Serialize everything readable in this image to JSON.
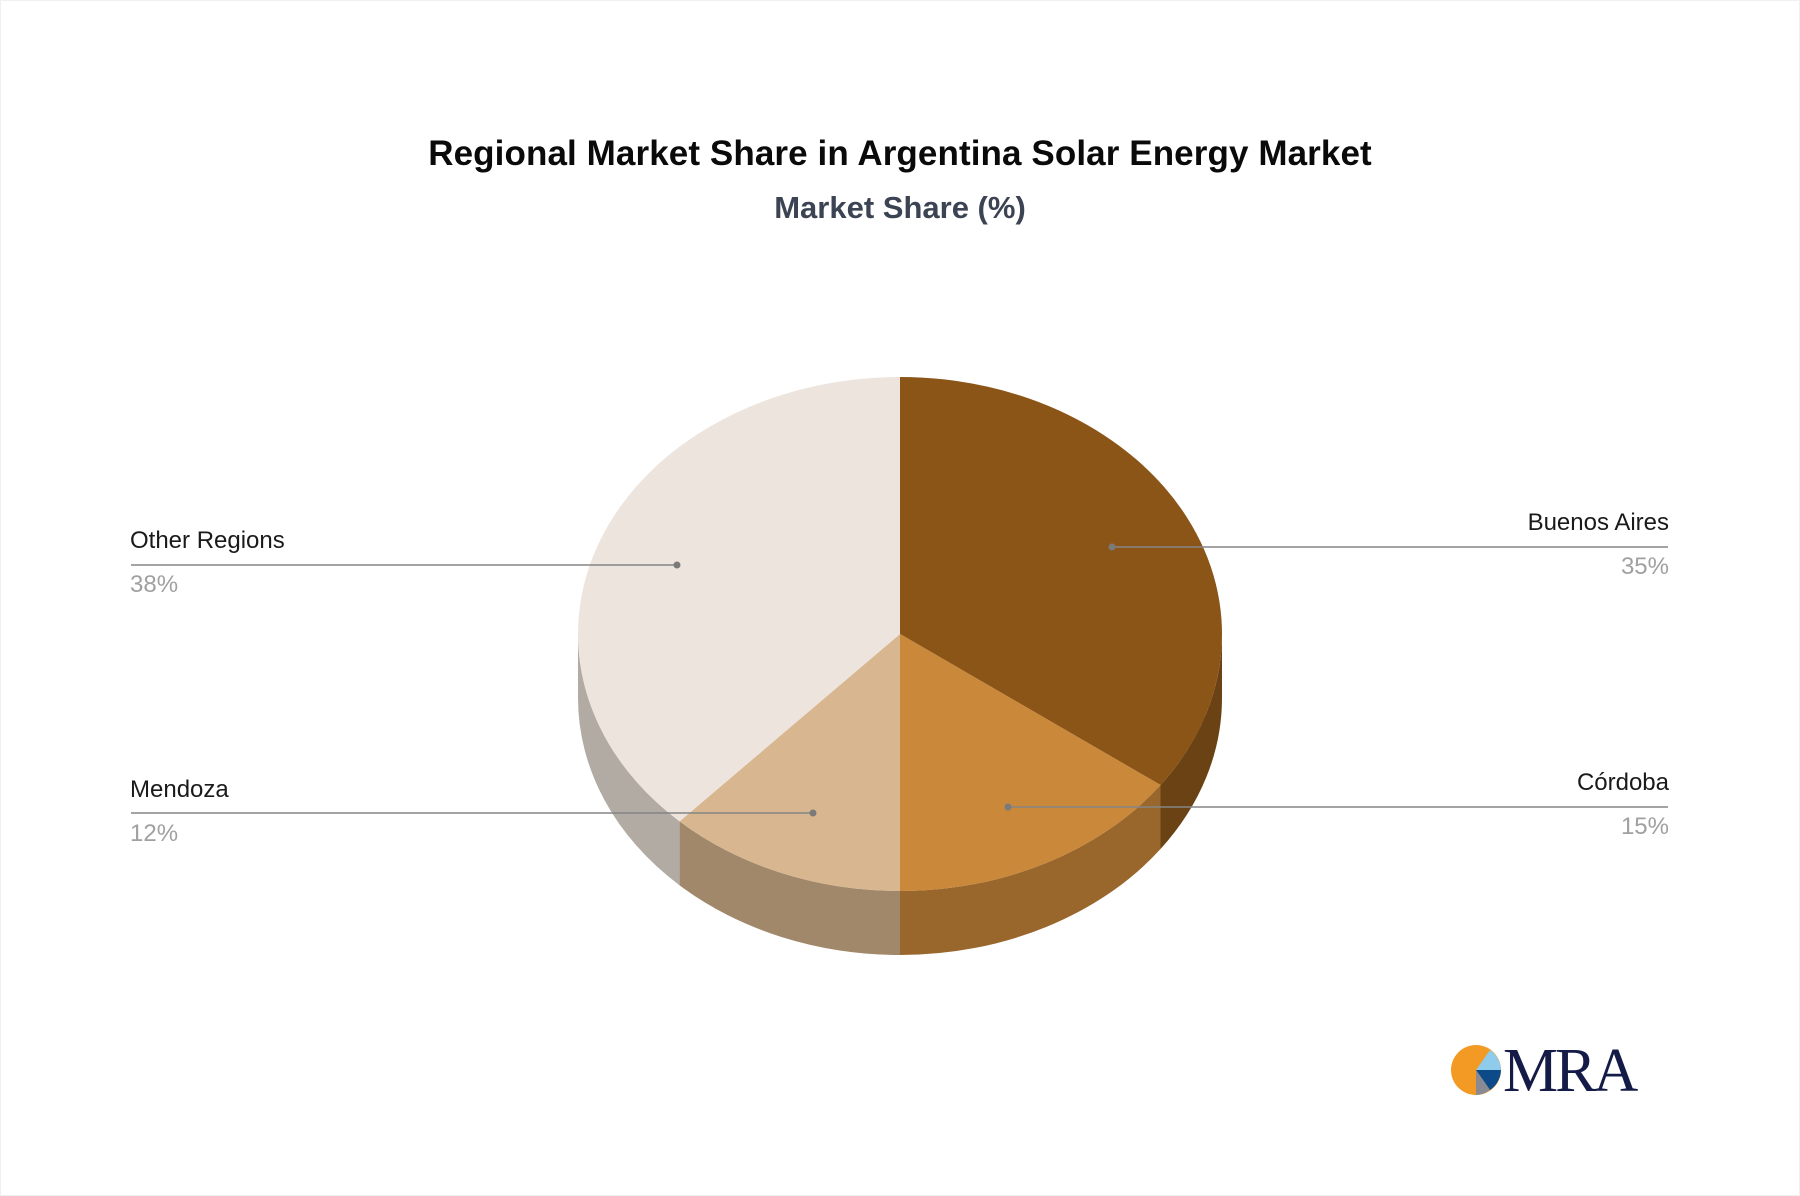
{
  "chart_data": {
    "type": "pie",
    "title": "Regional Market Share in Argentina Solar Energy Market",
    "subtitle": "Market Share (%)",
    "style": "3d-pie",
    "start_angle": "12 o'clock, clockwise",
    "slices": [
      {
        "label": "Buenos Aires",
        "value": 35,
        "display": "35%",
        "color": "#8B5518",
        "side_color": "#6B4214"
      },
      {
        "label": "Córdoba",
        "value": 15,
        "display": "15%",
        "color": "#C9883A",
        "side_color": "#99662C"
      },
      {
        "label": "Mendoza",
        "value": 12,
        "display": "12%",
        "color": "#D8B690",
        "side_color": "#A2886A"
      },
      {
        "label": "Other Regions",
        "value": 38,
        "display": "38%",
        "color": "#EDE5DD",
        "side_color": "#B1ABA4"
      }
    ],
    "legend_position": "callout labels"
  },
  "labels": {
    "buenos_aires": {
      "name": "Buenos Aires",
      "pct": "35%"
    },
    "cordoba": {
      "name": "Córdoba",
      "pct": "15%"
    },
    "mendoza": {
      "name": "Mendoza",
      "pct": "12%"
    },
    "other": {
      "name": "Other Regions",
      "pct": "38%"
    }
  },
  "logo": {
    "text": "MRA"
  }
}
